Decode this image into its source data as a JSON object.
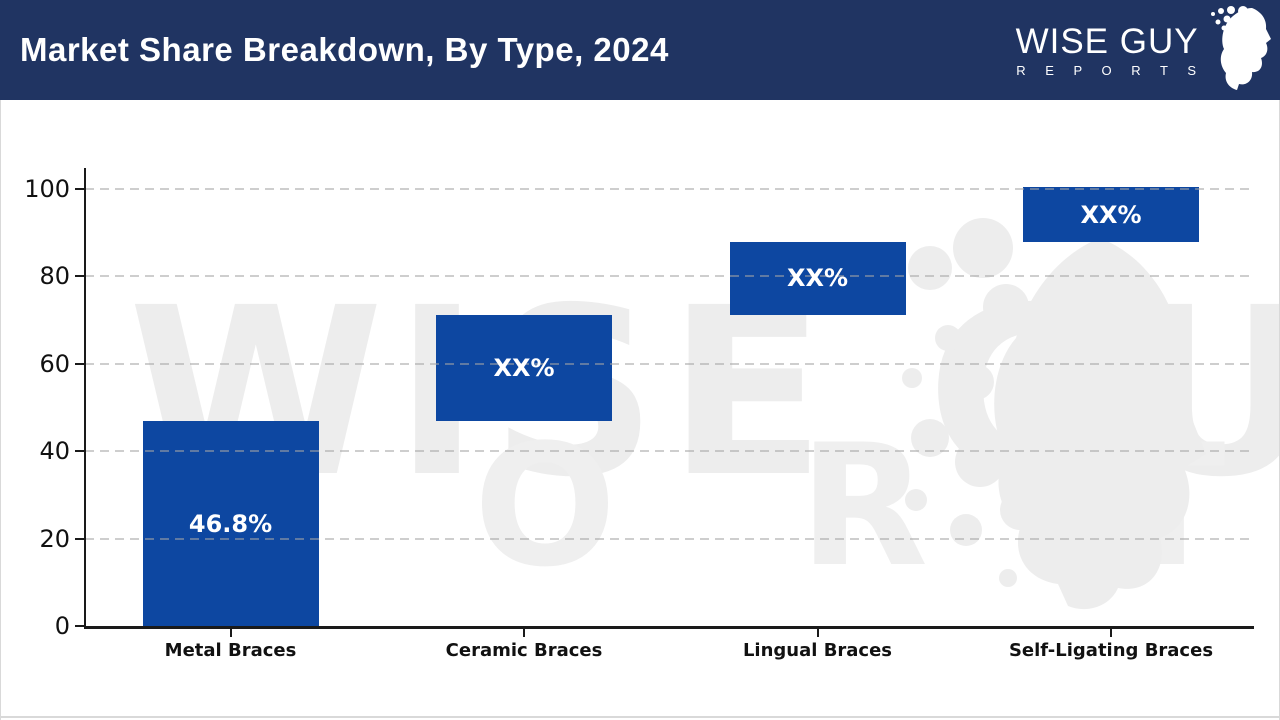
{
  "header": {
    "bg_color": "#203462",
    "title": "Market Share Breakdown, By Type, 2024",
    "logo": {
      "line1": "WISE GUY",
      "line2": "R E P O R T S"
    }
  },
  "watermark": {
    "line1": "WISE GU",
    "line2": "P O R T S"
  },
  "chart_data": {
    "type": "bar",
    "subtype": "stacked-waterfall",
    "title": "Market Share Breakdown, By Type, 2024",
    "categories": [
      "Metal Braces",
      "Ceramic Braces",
      "Lingual Braces",
      "Self-Ligating Braces"
    ],
    "segments": [
      {
        "category": "Metal Braces",
        "start": 0,
        "end": 46.8,
        "value": 46.8,
        "label": "46.8%"
      },
      {
        "category": "Ceramic Braces",
        "start": 46.8,
        "end": 71.2,
        "value": 24.4,
        "label": "XX%"
      },
      {
        "category": "Lingual Braces",
        "start": 71.2,
        "end": 87.7,
        "value": 16.5,
        "label": "XX%"
      },
      {
        "category": "Self-Ligating Braces",
        "start": 87.7,
        "end": 100.4,
        "value": 12.7,
        "label": "XX%"
      }
    ],
    "yticks": [
      0,
      20,
      40,
      60,
      80,
      100
    ],
    "ylim": [
      0,
      105
    ],
    "xlabel": "",
    "ylabel": "",
    "bar_color": "#0d47a1",
    "bar_label_color": "#ffffff",
    "grid": "dashed-horizontal-above-bars",
    "gridline_color": "#dddddd",
    "axis_color": "#1a1a1a",
    "legend": "none"
  }
}
